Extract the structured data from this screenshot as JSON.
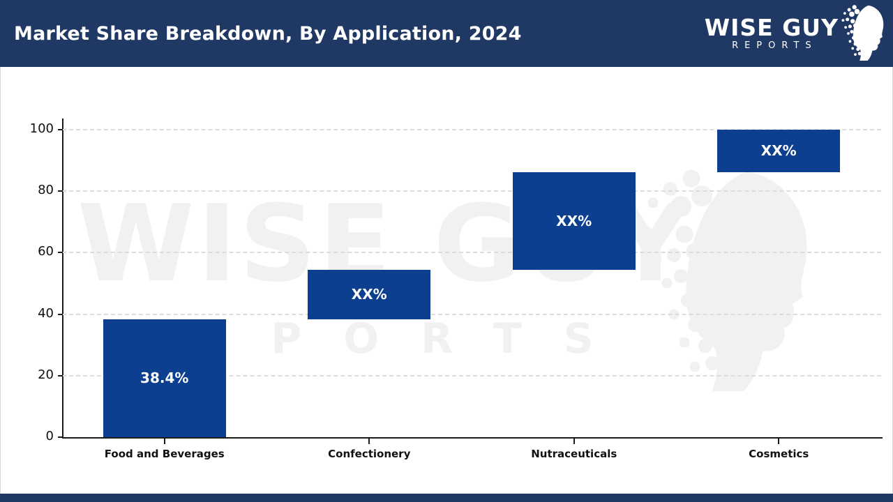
{
  "header": {
    "title": "Market Share Breakdown, By Application, 2024",
    "bg_color": "#1F3864",
    "logo": {
      "line1": "WISE GUY",
      "line2": "REPORTS"
    }
  },
  "watermark": {
    "line1": "WISE GUY",
    "line2": "REPORTS"
  },
  "chart_data": {
    "type": "bar",
    "subtype": "waterfall",
    "title": "Market Share Breakdown, By Application, 2024",
    "categories": [
      "Food and Beverages",
      "Confectionery",
      "Nutraceuticals",
      "Cosmetics"
    ],
    "bars": [
      {
        "category": "Food and Beverages",
        "start": 0,
        "end": 38.4,
        "label": "38.4%"
      },
      {
        "category": "Confectionery",
        "start": 38.4,
        "end": 54.4,
        "label": "XX%"
      },
      {
        "category": "Nutraceuticals",
        "start": 54.4,
        "end": 86.2,
        "label": "XX%"
      },
      {
        "category": "Cosmetics",
        "start": 86.2,
        "end": 100,
        "label": "XX%"
      }
    ],
    "y_axis": {
      "ticks": [
        0,
        20,
        40,
        60,
        80,
        100
      ],
      "range": [
        0,
        104
      ],
      "gridlines": true,
      "gridline_style": "dashed"
    },
    "x_axis": {
      "label": "",
      "tick_style": "bold"
    },
    "bar_color": "#0C3F8F",
    "bar_label_color": "#FFFFFF",
    "grid_color": "#DCDCDC",
    "legend": "none"
  },
  "footer": {
    "bg_color": "#1F3864"
  }
}
